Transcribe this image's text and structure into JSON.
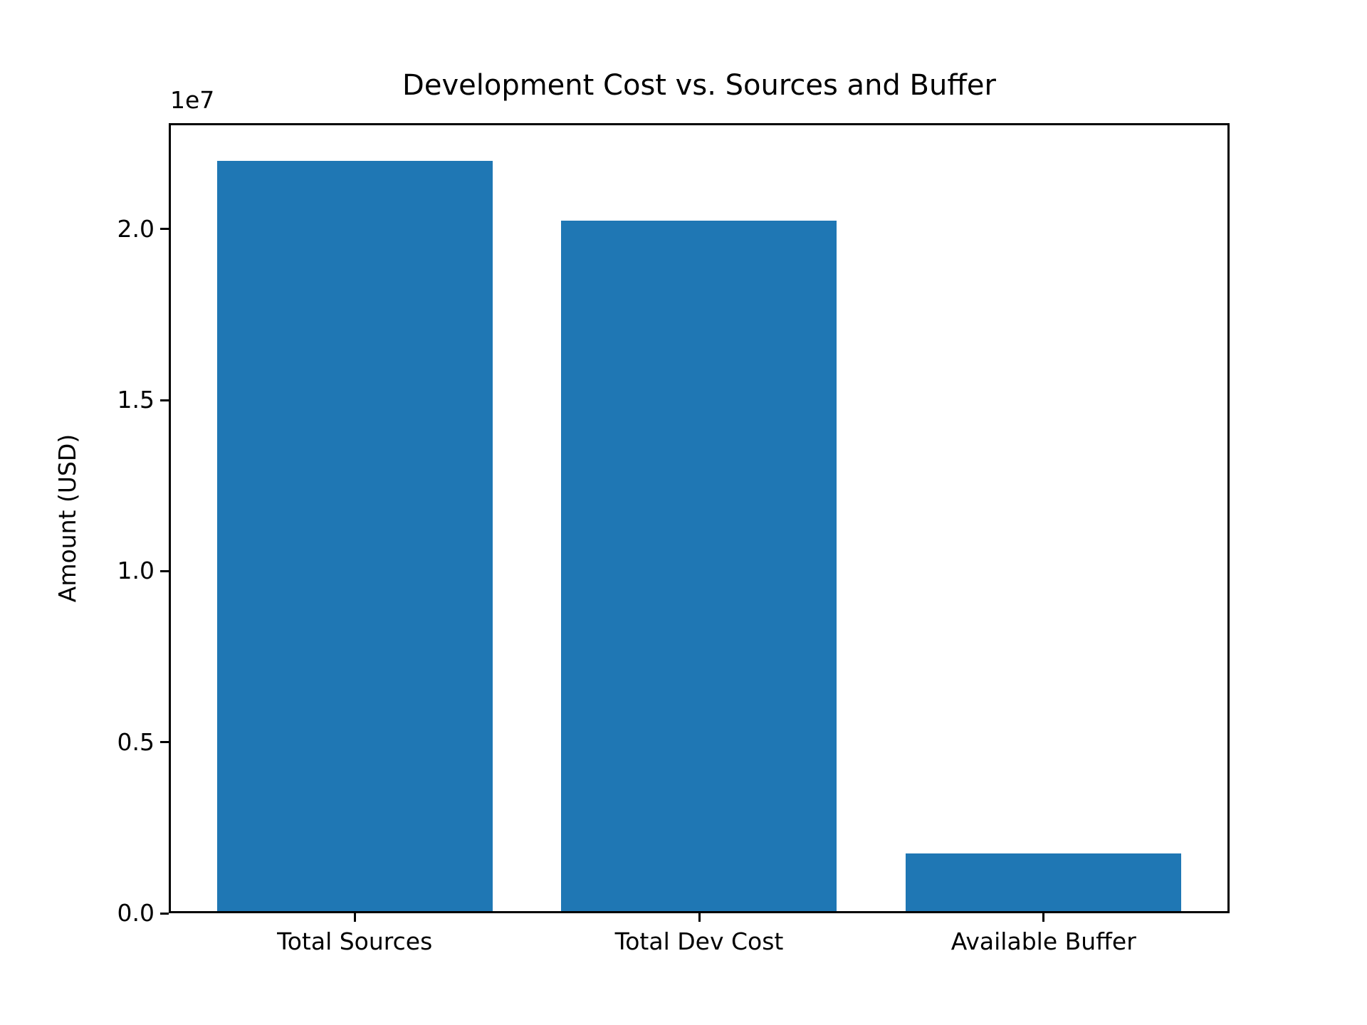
{
  "figure": {
    "title": "Development Cost vs. Sources and Buffer",
    "y_axis_label": "Amount (USD)",
    "offset_text": "1e7"
  },
  "chart_data": {
    "type": "bar",
    "title": "Development Cost vs. Sources and Buffer",
    "xlabel": "",
    "ylabel": "Amount (USD)",
    "categories": [
      "Total Sources",
      "Total Dev Cost",
      "Available Buffer"
    ],
    "values": [
      22000000,
      20250000,
      1750000
    ],
    "bar_color": "#1f77b4",
    "bar_width": 0.8,
    "ylim": [
      0,
      23100000
    ],
    "xlim": [
      -0.54,
      2.54
    ],
    "yticks": {
      "values": [
        0,
        5000000,
        10000000,
        15000000,
        20000000
      ],
      "labels": [
        "0.0",
        "0.5",
        "1.0",
        "1.5",
        "2.0"
      ]
    },
    "y_offset_text": "1e7",
    "grid": false,
    "legend": null,
    "frame_color": "#000000",
    "background_color": "#ffffff"
  }
}
